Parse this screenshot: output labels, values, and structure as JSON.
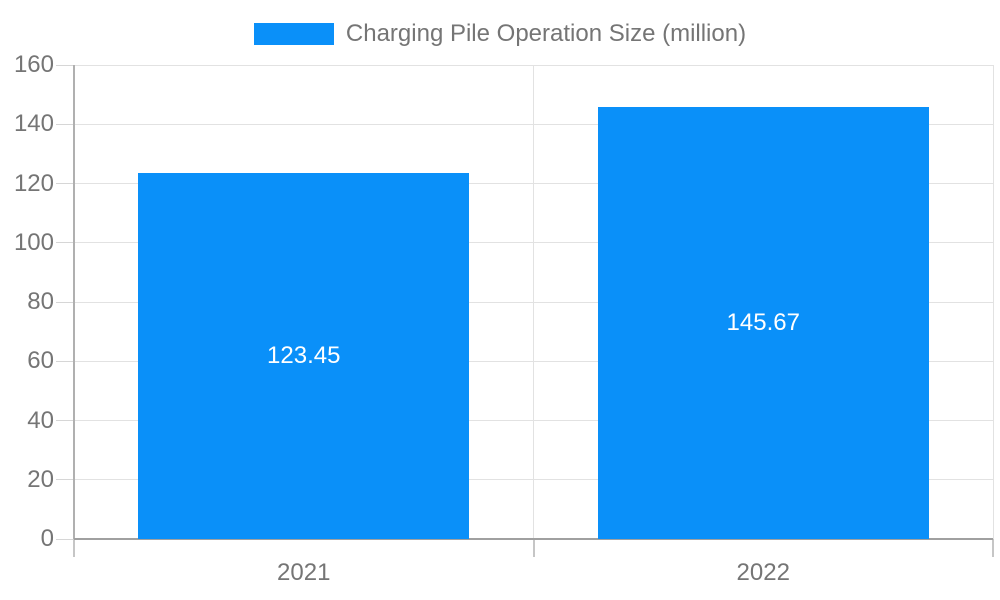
{
  "legend": {
    "label": "Charging Pile Operation Size (million)"
  },
  "colors": {
    "bar": "#0a90f9",
    "axis_text": "#757575",
    "bar_label_text": "#ffffff",
    "gridline": "#e2e2e2",
    "y_axis_line": "#b0b0b0",
    "x_axis_line": "#a0a0a0"
  },
  "chart_data": {
    "type": "bar",
    "title": "Charging Pile Operation Size (million)",
    "categories": [
      "2021",
      "2022"
    ],
    "values": [
      123.45,
      145.67
    ],
    "value_labels": [
      "123.45",
      "145.67"
    ],
    "xlabel": "",
    "ylabel": "",
    "ylim": [
      0,
      160
    ],
    "yticks": [
      0,
      20,
      40,
      60,
      80,
      100,
      120,
      140,
      160
    ],
    "grid": true,
    "legend_position": "top-center",
    "bar_label_position": "inside-center"
  }
}
